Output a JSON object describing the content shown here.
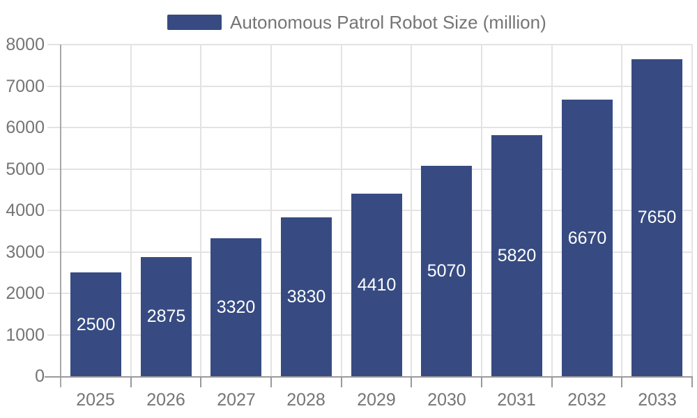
{
  "legend": {
    "label": "Autonomous Patrol Robot Size (million)"
  },
  "chart_data": {
    "type": "bar",
    "title": "Autonomous Patrol Robot Size (million)",
    "categories": [
      "2025",
      "2026",
      "2027",
      "2028",
      "2029",
      "2030",
      "2031",
      "2032",
      "2033"
    ],
    "values": [
      2500,
      2875,
      3320,
      3830,
      4410,
      5070,
      5820,
      6670,
      7650
    ],
    "series": [
      {
        "name": "Autonomous Patrol Robot Size (million)",
        "values": [
          2500,
          2875,
          3320,
          3830,
          4410,
          5070,
          5820,
          6670,
          7650
        ]
      }
    ],
    "xlabel": "",
    "ylabel": "",
    "ylim": [
      0,
      8000
    ],
    "yticks": [
      0,
      1000,
      2000,
      3000,
      4000,
      5000,
      6000,
      7000,
      8000
    ],
    "grid": true,
    "legend_position": "top-center",
    "value_labels": "inside-center"
  },
  "colors": {
    "bar": "#374B82",
    "axis_line": "#9A9A9A",
    "spine": "#A8A8A8",
    "grid_line": "#E3E3E3",
    "tick_text": "#757575",
    "value_text": "#FFFFFF",
    "background": "#FFFFFF"
  }
}
